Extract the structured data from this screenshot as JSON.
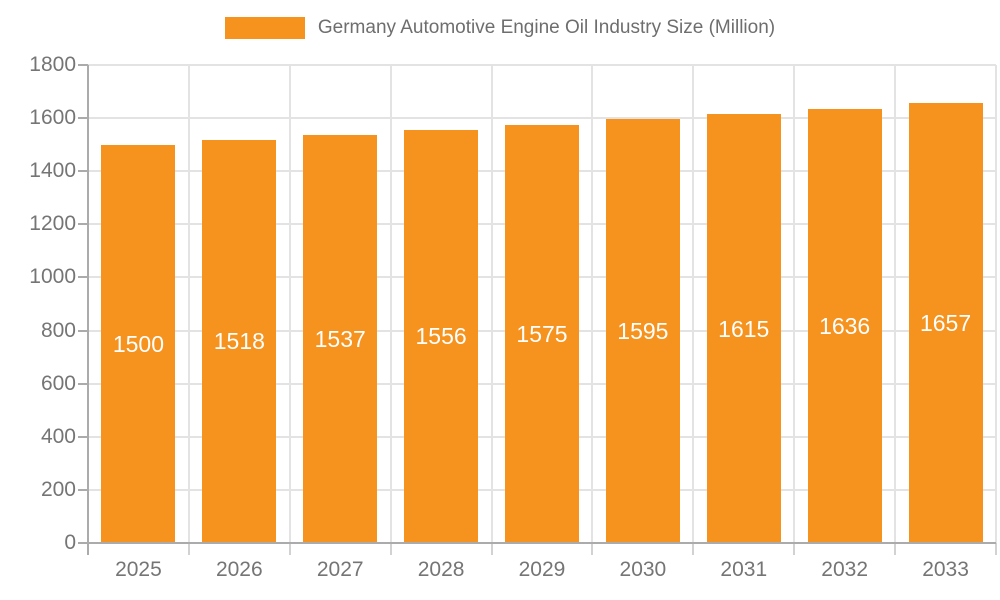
{
  "legend": {
    "label": "Germany Automotive Engine Oil Industry Size (Million)"
  },
  "chart_data": {
    "type": "bar",
    "title": "Germany Automotive Engine Oil Industry Size (Million)",
    "xlabel": "",
    "ylabel": "",
    "categories": [
      "2025",
      "2026",
      "2027",
      "2028",
      "2029",
      "2030",
      "2031",
      "2032",
      "2033"
    ],
    "values": [
      1500,
      1518,
      1537,
      1556,
      1575,
      1595,
      1615,
      1636,
      1657
    ],
    "value_labels": [
      "1500",
      "1518",
      "1537",
      "1556",
      "1575",
      "1595",
      "1615",
      "1636",
      "1657"
    ],
    "yticks": [
      0,
      200,
      400,
      600,
      800,
      1000,
      1200,
      1400,
      1600,
      1800
    ],
    "ylim": [
      0,
      1800
    ],
    "grid": true,
    "legend_position": "top",
    "colors": {
      "bar": "#F6921E",
      "value_label": "#FFFFFF",
      "gridline": "#E3E3E3",
      "axis_line": "#ABABAB",
      "x_tick": "#D2D2D2",
      "tick_label": "#757575",
      "legend_text": "#6E6E6E"
    }
  }
}
